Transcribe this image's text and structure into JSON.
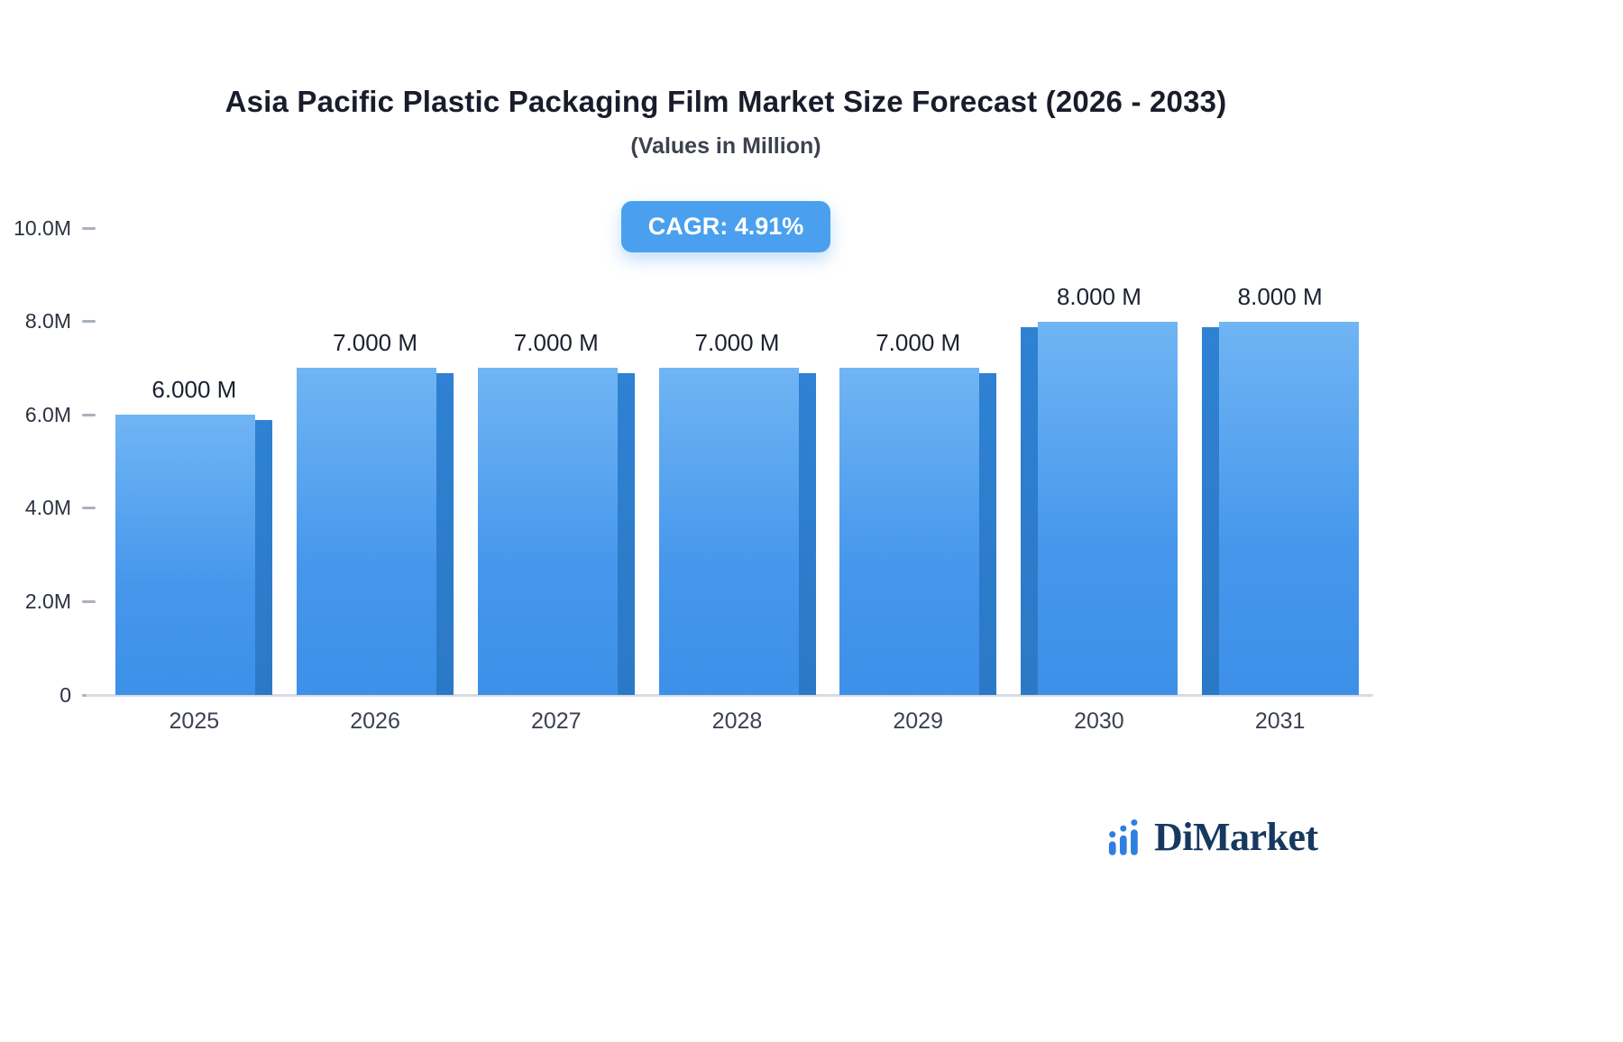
{
  "header": {
    "title": "Asia Pacific Plastic Packaging Film Market Size Forecast (2026 - 2033)",
    "subtitle": "(Values in Million)"
  },
  "badge": {
    "label": "CAGR: 4.91%",
    "color": "#4AA0EF"
  },
  "chart_data": {
    "type": "bar",
    "title": "Asia Pacific Plastic Packaging Film Market Size Forecast (2026 - 2033)",
    "subtitle": "(Values in Million)",
    "categories": [
      "2025",
      "2026",
      "2027",
      "2028",
      "2029",
      "2030",
      "2031"
    ],
    "values": [
      6,
      7,
      7,
      7,
      7,
      8,
      8
    ],
    "value_labels": [
      "6.000 M",
      "7.000 M",
      "7.000 M",
      "7.000 M",
      "7.000 M",
      "8.000 M",
      "8.000 M"
    ],
    "unit": "Million",
    "xlabel": "",
    "ylabel": "",
    "ylim": [
      0,
      10
    ],
    "yticks": [
      "0",
      "2.0M",
      "4.0M",
      "6.0M",
      "8.0M",
      "10.0M"
    ],
    "grid": false,
    "legend": "none",
    "bar_colors": {
      "top": "#70B5F4",
      "bottom": "#3D90E8",
      "side": "#2C7BC9"
    }
  },
  "branding": {
    "name": "DiMarket",
    "icon": "bar-chart-logo-icon",
    "icon_color": "#2E7FE0",
    "text_color": "#17395F"
  }
}
